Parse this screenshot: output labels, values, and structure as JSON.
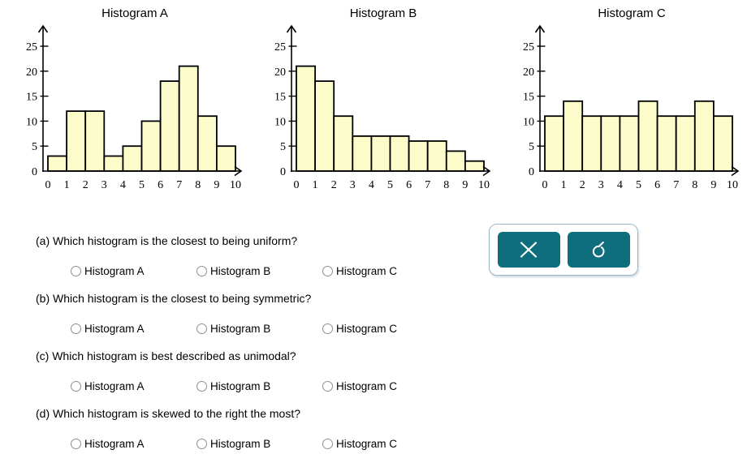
{
  "page": {
    "background": "#ffffff"
  },
  "chart_data": [
    {
      "type": "bar",
      "title": "Histogram A",
      "bin_edges": [
        0,
        1,
        2,
        3,
        4,
        5,
        6,
        7,
        8,
        9,
        10
      ],
      "values": [
        3,
        12,
        12,
        3,
        5,
        10,
        18,
        21,
        11,
        5
      ],
      "xticks": [
        0,
        1,
        2,
        3,
        4,
        5,
        6,
        7,
        8,
        9,
        10
      ],
      "yticks": [
        0,
        5,
        10,
        15,
        20,
        25
      ],
      "ylim": [
        0,
        25
      ],
      "bar_fill": "#fcfccb",
      "bar_stroke": "#000000",
      "grid": false
    },
    {
      "type": "bar",
      "title": "Histogram B",
      "bin_edges": [
        0,
        1,
        2,
        3,
        4,
        5,
        6,
        7,
        8,
        9,
        10
      ],
      "values": [
        21,
        18,
        11,
        7,
        7,
        7,
        6,
        6,
        4,
        2
      ],
      "xticks": [
        0,
        1,
        2,
        3,
        4,
        5,
        6,
        7,
        8,
        9,
        10
      ],
      "yticks": [
        0,
        5,
        10,
        15,
        20,
        25
      ],
      "ylim": [
        0,
        25
      ],
      "bar_fill": "#fcfccb",
      "bar_stroke": "#000000",
      "grid": false
    },
    {
      "type": "bar",
      "title": "Histogram C",
      "bin_edges": [
        0,
        1,
        2,
        3,
        4,
        5,
        6,
        7,
        8,
        9,
        10
      ],
      "values": [
        11,
        14,
        11,
        11,
        11,
        14,
        11,
        11,
        14,
        11
      ],
      "xticks": [
        0,
        1,
        2,
        3,
        4,
        5,
        6,
        7,
        8,
        9,
        10
      ],
      "yticks": [
        0,
        5,
        10,
        15,
        20,
        25
      ],
      "ylim": [
        0,
        25
      ],
      "bar_fill": "#fcfccb",
      "bar_stroke": "#000000",
      "grid": false
    }
  ],
  "questions": [
    {
      "id": "a",
      "text": "(a) Which histogram is the closest to being uniform?",
      "options": [
        "Histogram A",
        "Histogram B",
        "Histogram C"
      ],
      "selected": null
    },
    {
      "id": "b",
      "text": "(b) Which histogram is the closest to being symmetric?",
      "options": [
        "Histogram A",
        "Histogram B",
        "Histogram C"
      ],
      "selected": null
    },
    {
      "id": "c",
      "text": "(c) Which histogram is best described as unimodal?",
      "options": [
        "Histogram A",
        "Histogram B",
        "Histogram C"
      ],
      "selected": null
    },
    {
      "id": "d",
      "text": "(d) Which histogram is skewed to the right the most?",
      "options": [
        "Histogram A",
        "Histogram B",
        "Histogram C"
      ],
      "selected": null
    }
  ],
  "toolbar": {
    "accent": "#0f6e7e",
    "panel_border": "#9ab7c8",
    "buttons": [
      {
        "name": "clear-answer-button",
        "icon": "x-icon"
      },
      {
        "name": "undo-button",
        "icon": "undo-icon"
      }
    ]
  }
}
